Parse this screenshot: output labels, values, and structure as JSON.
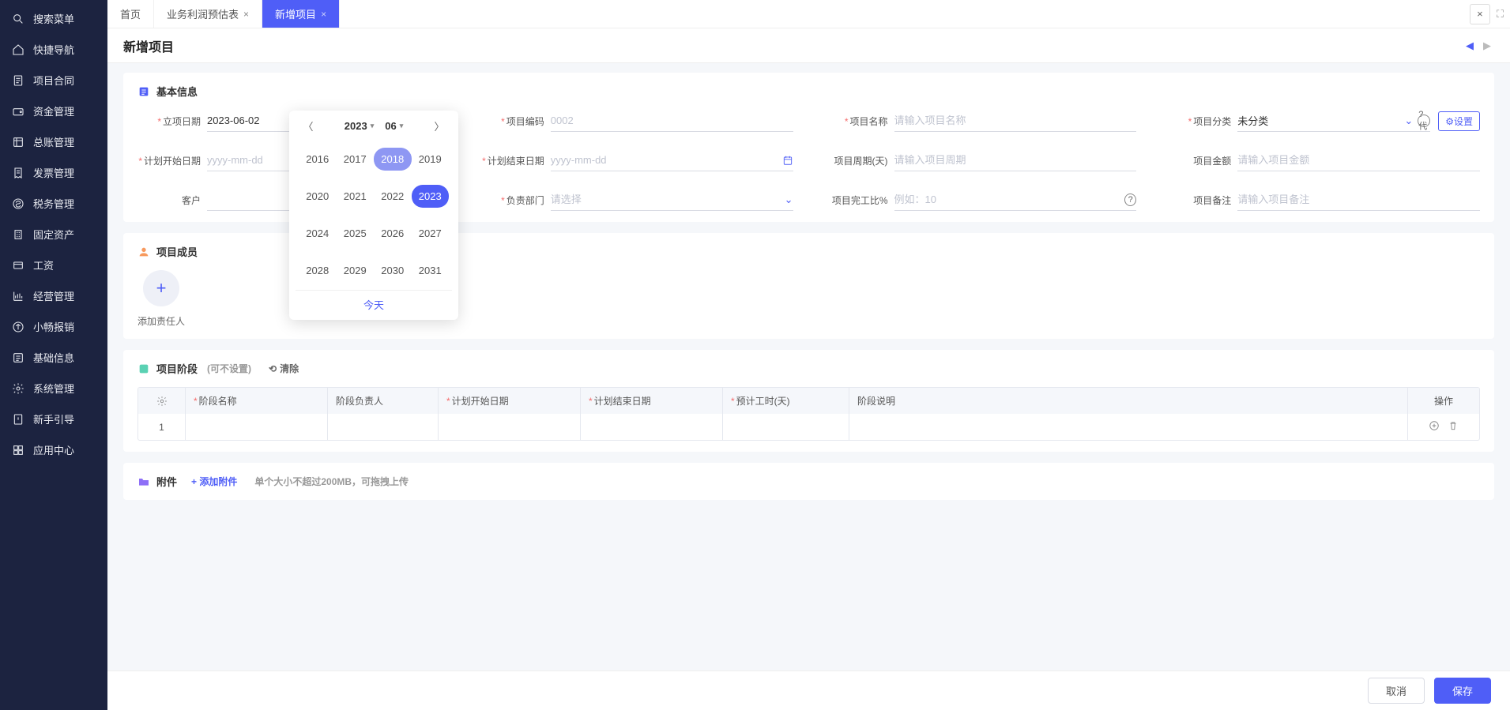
{
  "sidebar": {
    "items": [
      {
        "label": "搜索菜单"
      },
      {
        "label": "快捷导航"
      },
      {
        "label": "项目合同"
      },
      {
        "label": "资金管理"
      },
      {
        "label": "总账管理"
      },
      {
        "label": "发票管理"
      },
      {
        "label": "税务管理"
      },
      {
        "label": "固定资产"
      },
      {
        "label": "工资"
      },
      {
        "label": "经营管理"
      },
      {
        "label": "小畅报销"
      },
      {
        "label": "基础信息"
      },
      {
        "label": "系统管理"
      },
      {
        "label": "新手引导"
      },
      {
        "label": "应用中心"
      }
    ]
  },
  "tabs": [
    {
      "label": "首页",
      "closable": false,
      "active": false
    },
    {
      "label": "业务利润预估表",
      "closable": true,
      "active": false
    },
    {
      "label": "新增项目",
      "closable": true,
      "active": true
    }
  ],
  "page_title": "新增项目",
  "section_basic": {
    "title": "基本信息",
    "setting_btn": "设置",
    "fields": {
      "date_label": "立项日期",
      "date_value": "2023-06-02",
      "code_label": "项目编码",
      "code_value": "0002",
      "name_label": "项目名称",
      "name_ph": "请输入项目名称",
      "cat_label": "项目分类",
      "cat_value": "未分类",
      "plan_start_label": "计划开始日期",
      "plan_start_ph": "yyyy-mm-dd",
      "plan_end_label": "计划结束日期",
      "plan_end_ph": "yyyy-mm-dd",
      "period_label": "项目周期(天)",
      "period_ph": "请输入项目周期",
      "amount_label": "项目金额",
      "amount_ph": "请输入项目金额",
      "customer_label": "客户",
      "dept_label": "负责部门",
      "dept_ph": "请选择",
      "pct_label": "项目完工比%",
      "pct_ph": "例如：10",
      "remark_label": "项目备注",
      "remark_ph": "请输入项目备注"
    }
  },
  "section_members": {
    "title": "项目成员",
    "add_label": "添加责任人"
  },
  "section_stage": {
    "title": "项目阶段",
    "hint": "(可不设置)",
    "clear": "清除",
    "headers": {
      "name": "阶段名称",
      "owner": "阶段负责人",
      "start": "计划开始日期",
      "end": "计划结束日期",
      "hours": "预计工时(天)",
      "desc": "阶段说明",
      "ops": "操作"
    },
    "row_index": "1"
  },
  "section_attach": {
    "title": "附件",
    "add": "+ 添加附件",
    "hint": "单个大小不超过200MB，可拖拽上传"
  },
  "footer": {
    "cancel": "取消",
    "save": "保存"
  },
  "yearpicker": {
    "year_label": "2023",
    "month_label": "06",
    "today": "今天",
    "years": [
      "2016",
      "2017",
      "2018",
      "2019",
      "2020",
      "2021",
      "2022",
      "2023",
      "2024",
      "2025",
      "2026",
      "2027",
      "2028",
      "2029",
      "2030",
      "2031"
    ],
    "hovered": "2018",
    "current": "2023"
  }
}
